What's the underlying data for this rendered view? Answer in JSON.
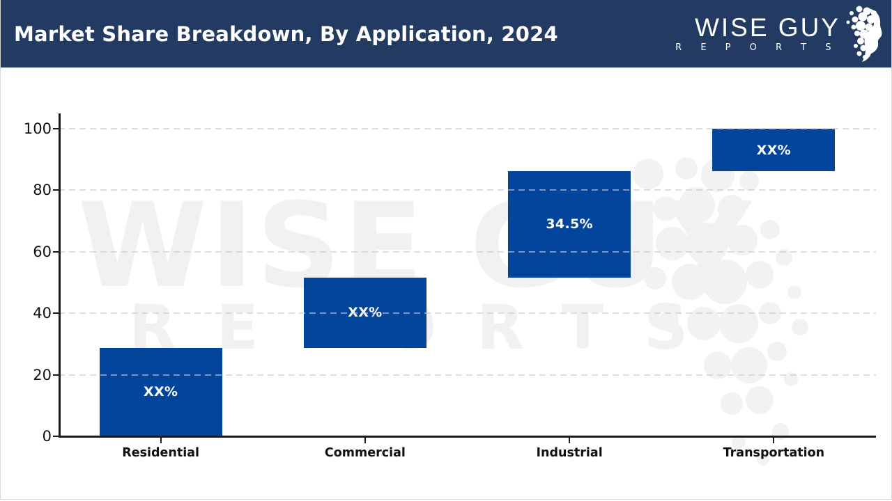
{
  "header": {
    "title": "Market Share Breakdown, By Application, 2024",
    "bg_color": "#233a63",
    "logo": {
      "line1": "WISE GUY",
      "line2": "R E P O R T S"
    }
  },
  "watermark": {
    "line1": "WISE GUY",
    "line2": "REPORTS"
  },
  "chart_data": {
    "type": "bar",
    "variant": "waterfall-stacked-breakdown",
    "title": "Market Share Breakdown, By Application, 2024",
    "categories": [
      "Residential",
      "Commercial",
      "Industrial",
      "Transportation"
    ],
    "segments": [
      {
        "category": "Residential",
        "start": 0,
        "end": 28.8,
        "label": "XX%"
      },
      {
        "category": "Commercial",
        "start": 28.8,
        "end": 51.7,
        "label": "XX%"
      },
      {
        "category": "Industrial",
        "start": 51.7,
        "end": 86.2,
        "label": "34.5%"
      },
      {
        "category": "Transportation",
        "start": 86.2,
        "end": 100,
        "label": "XX%"
      }
    ],
    "values_pct": [
      28.8,
      22.9,
      34.5,
      13.8
    ],
    "y_ticks": [
      0,
      20,
      40,
      60,
      80,
      100
    ],
    "ylim": [
      0,
      105
    ],
    "xlabel": "",
    "ylabel": "",
    "grid": "horizontal-dashed",
    "legend": "none",
    "bar_color": "#04459c",
    "bar_label_color": "#ffffff",
    "grid_color": "#d9d9d9",
    "axis_color": "#1a1a1a"
  }
}
